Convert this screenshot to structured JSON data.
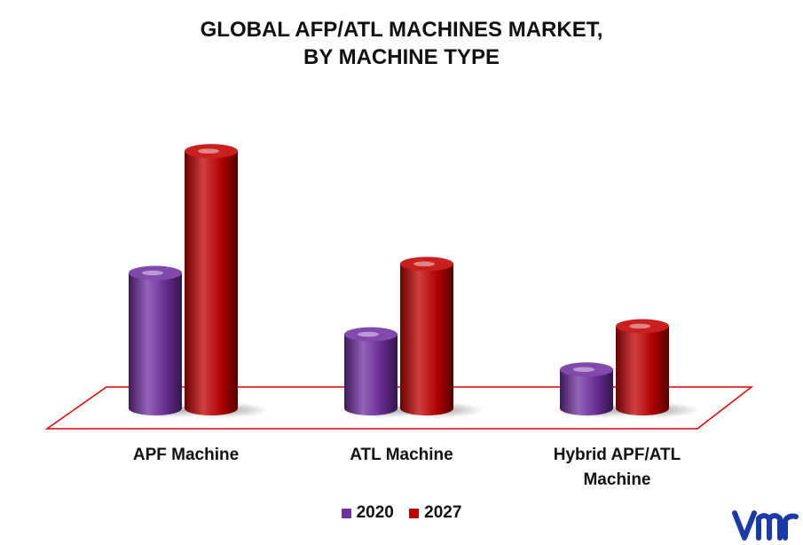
{
  "title_lines": [
    "GLOBAL AFP/ATL MACHINES MARKET,",
    "BY MACHINE TYPE"
  ],
  "chart_data": {
    "type": "bar",
    "categories": [
      [
        "APF Machine"
      ],
      [
        "ATL Machine"
      ],
      [
        "Hybrid APF/ATL",
        "Machine"
      ]
    ],
    "series": [
      {
        "name": "2020",
        "color": "#7030a0",
        "values": [
          150,
          82,
          43
        ]
      },
      {
        "name": "2027",
        "color": "#c00000",
        "values": [
          285,
          160,
          91
        ]
      }
    ],
    "ylim": [
      0,
      300
    ],
    "grid": false,
    "legend_position": "bottom"
  },
  "floor_color": "#e00000",
  "logo_icon": "vmr-logo-icon",
  "logo_color": "#1a3aa8"
}
